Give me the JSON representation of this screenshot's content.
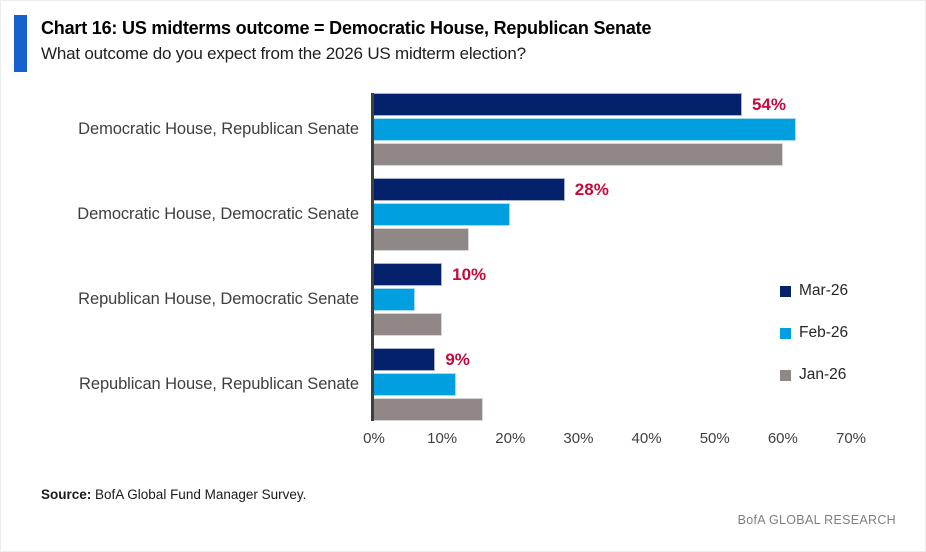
{
  "header": {
    "title": "Chart 16: US midterms outcome = Democratic House, Republican Senate",
    "subtitle": "What outcome do you expect from the 2026 US midterm election?",
    "accent_color": "#1660CF"
  },
  "chart_data": {
    "type": "bar",
    "orientation": "horizontal",
    "title": "Chart 16: US midterms outcome = Democratic House, Republican Senate",
    "subtitle": "What outcome do you expect from the 2026 US midterm election?",
    "categories": [
      "Democratic House, Republican Senate",
      "Democratic House, Democratic Senate",
      "Republican House, Democratic Senate",
      "Republican House, Republican Senate"
    ],
    "series": [
      {
        "name": "Mar-26",
        "color": "#04216B",
        "values": [
          54,
          28,
          10,
          9
        ]
      },
      {
        "name": "Feb-26",
        "color": "#009FDF",
        "values": [
          62,
          20,
          6,
          12
        ]
      },
      {
        "name": "Jan-26",
        "color": "#8F8886",
        "values": [
          60,
          14,
          10,
          16
        ]
      }
    ],
    "data_labels": {
      "series": "Mar-26",
      "texts": [
        "54%",
        "28%",
        "10%",
        "9%"
      ],
      "color": "#C8093A"
    },
    "xlabel": "",
    "ylabel": "",
    "xlim": [
      0,
      70
    ],
    "x_ticks": {
      "values": [
        0,
        10,
        20,
        30,
        40,
        50,
        60,
        70
      ],
      "labels": [
        "0%",
        "10%",
        "20%",
        "30%",
        "40%",
        "50%",
        "60%",
        "70%"
      ]
    },
    "grid": false,
    "legend_position": "right-middle",
    "axis_line_color": "#3F3F3F"
  },
  "footer": {
    "source_label": "Source:",
    "source_text": " BofA Global Fund Manager Survey.",
    "brand": "BofA GLOBAL RESEARCH"
  }
}
